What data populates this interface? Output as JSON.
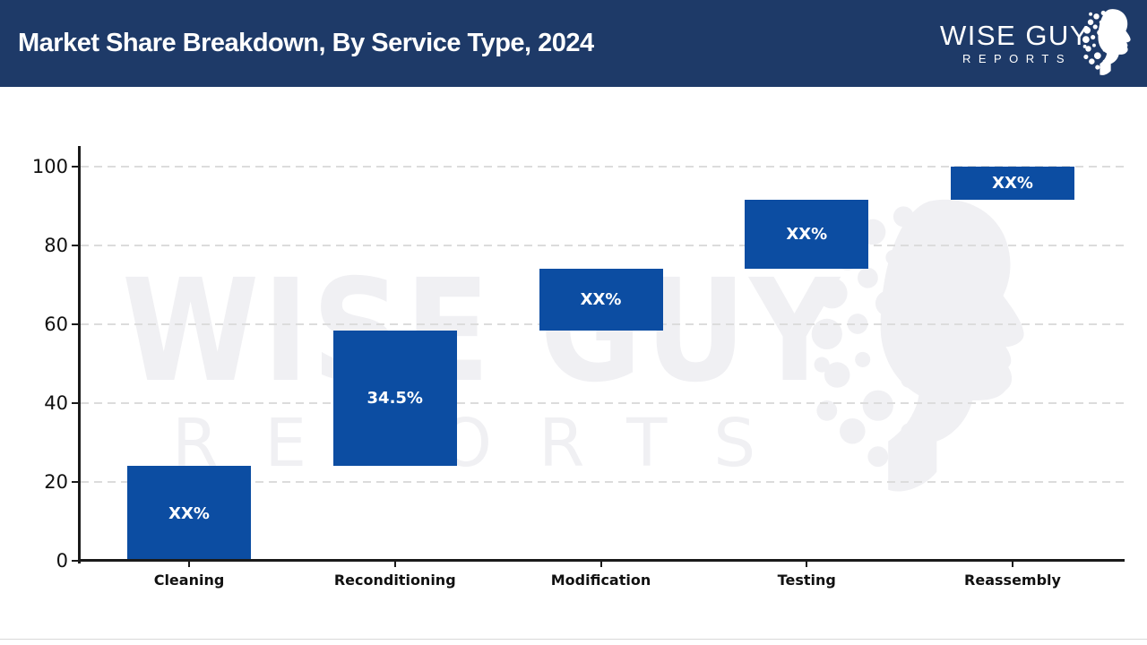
{
  "header": {
    "title": "Market Share Breakdown, By Service Type, 2024",
    "logo": {
      "line1": "WISE GUY",
      "line2": "REPORTS"
    }
  },
  "watermark": {
    "line1": "WISE GUY",
    "line2": "REPORTS"
  },
  "chart_data": {
    "type": "bar",
    "subtype": "waterfall",
    "title": "Market Share Breakdown, By Service Type, 2024",
    "xlabel": "",
    "ylabel": "",
    "ylim": [
      0,
      105
    ],
    "yticks": [
      0,
      20,
      40,
      60,
      80,
      100
    ],
    "grid": "horizontal-dashed",
    "legend": "none",
    "bar_color": "#0c4da2",
    "bar_label_color": "#ffffff",
    "grid_color": "#dcdcdc",
    "axis_color": "#1a1a1a",
    "categories": [
      "Cleaning",
      "Reconditioning",
      "Modification",
      "Testing",
      "Reassembly"
    ],
    "segments": [
      {
        "category": "Cleaning",
        "start": 0,
        "end": 24,
        "value_label": "XX%"
      },
      {
        "category": "Reconditioning",
        "start": 24,
        "end": 58.5,
        "value_label": "34.5%"
      },
      {
        "category": "Modification",
        "start": 58.5,
        "end": 74,
        "value_label": "XX%"
      },
      {
        "category": "Testing",
        "start": 74,
        "end": 91.5,
        "value_label": "XX%"
      },
      {
        "category": "Reassembly",
        "start": 91.5,
        "end": 100,
        "value_label": "XX%"
      }
    ]
  }
}
